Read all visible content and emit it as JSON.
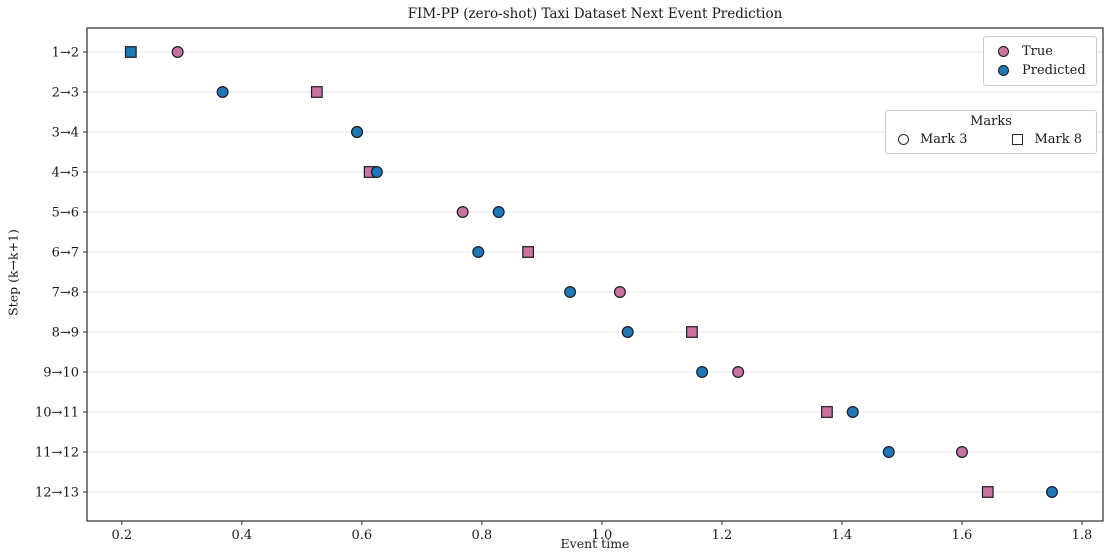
{
  "colors": {
    "true_fill": "#c9739f",
    "predicted_fill": "#1f77b4",
    "marker_edge": "#1c1c2e",
    "grid": "#e7e7e7",
    "spine": "#2b2b2b",
    "tick_text": "#1a1a1a"
  },
  "legend": {
    "true_label": "True",
    "predicted_label": "Predicted"
  },
  "marks_legend": {
    "title": "Marks",
    "mark3_label": "Mark 3",
    "mark8_label": "Mark 8"
  },
  "chart_data": {
    "type": "scatter",
    "title": "FIM-PP (zero-shot) Taxi Dataset Next Event Prediction",
    "xlabel": "Event time",
    "ylabel": "Step (k→k+1)",
    "categories": [
      "1→2",
      "2→3",
      "3→4",
      "4→5",
      "5→6",
      "6→7",
      "7→8",
      "8→9",
      "9→10",
      "10→11",
      "11→12",
      "12→13"
    ],
    "xticks": [
      0.2,
      0.4,
      0.6,
      0.8,
      1.0,
      1.2,
      1.4,
      1.6,
      1.8
    ],
    "xlim": [
      0.142,
      1.835
    ],
    "grid": "horizontal",
    "legend_position": "upper right",
    "mark_shapes": {
      "Mark 3": "circle",
      "Mark 8": "square"
    },
    "series": [
      {
        "name": "True",
        "color_key": "true_fill",
        "points": [
          {
            "step": "1→2",
            "x": 0.293,
            "mark": "Mark 3"
          },
          {
            "step": "2→3",
            "x": 0.525,
            "mark": "Mark 8"
          },
          {
            "step": "3→4",
            "x": 0.592,
            "mark": "Mark 3"
          },
          {
            "step": "4→5",
            "x": 0.613,
            "mark": "Mark 8"
          },
          {
            "step": "5→6",
            "x": 0.768,
            "mark": "Mark 3"
          },
          {
            "step": "6→7",
            "x": 0.877,
            "mark": "Mark 8"
          },
          {
            "step": "7→8",
            "x": 1.03,
            "mark": "Mark 3"
          },
          {
            "step": "8→9",
            "x": 1.15,
            "mark": "Mark 8"
          },
          {
            "step": "9→10",
            "x": 1.227,
            "mark": "Mark 3"
          },
          {
            "step": "10→11",
            "x": 1.375,
            "mark": "Mark 8"
          },
          {
            "step": "11→12",
            "x": 1.6,
            "mark": "Mark 3"
          },
          {
            "step": "12→13",
            "x": 1.643,
            "mark": "Mark 8"
          }
        ]
      },
      {
        "name": "Predicted",
        "color_key": "predicted_fill",
        "points": [
          {
            "step": "1→2",
            "x": 0.215,
            "mark": "Mark 8"
          },
          {
            "step": "2→3",
            "x": 0.368,
            "mark": "Mark 3"
          },
          {
            "step": "3→4",
            "x": 0.592,
            "mark": "Mark 3"
          },
          {
            "step": "4→5",
            "x": 0.625,
            "mark": "Mark 3"
          },
          {
            "step": "5→6",
            "x": 0.828,
            "mark": "Mark 3"
          },
          {
            "step": "6→7",
            "x": 0.794,
            "mark": "Mark 3"
          },
          {
            "step": "7→8",
            "x": 0.947,
            "mark": "Mark 3"
          },
          {
            "step": "8→9",
            "x": 1.043,
            "mark": "Mark 3"
          },
          {
            "step": "9→10",
            "x": 1.167,
            "mark": "Mark 3"
          },
          {
            "step": "10→11",
            "x": 1.418,
            "mark": "Mark 3"
          },
          {
            "step": "11→12",
            "x": 1.478,
            "mark": "Mark 3"
          },
          {
            "step": "12→13",
            "x": 1.75,
            "mark": "Mark 3"
          }
        ]
      }
    ]
  }
}
